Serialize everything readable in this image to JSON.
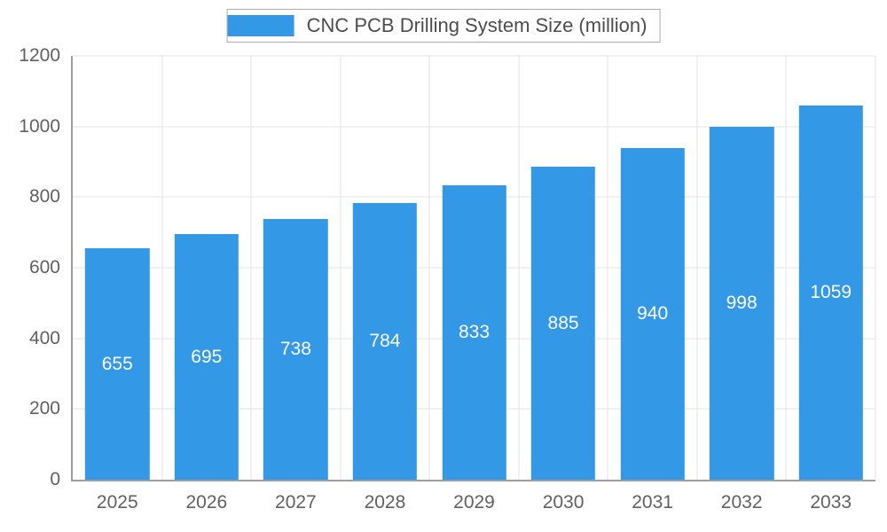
{
  "chart_data": {
    "type": "bar",
    "title": "CNC PCB Drilling System Size (million)",
    "categories": [
      "2025",
      "2026",
      "2027",
      "2028",
      "2029",
      "2030",
      "2031",
      "2032",
      "2033"
    ],
    "values": [
      655,
      695,
      738,
      784,
      833,
      885,
      940,
      998,
      1059
    ],
    "xlabel": "",
    "ylabel": "",
    "ylim": [
      0,
      1200
    ],
    "yticks": [
      0,
      200,
      400,
      600,
      800,
      1000,
      1200
    ],
    "grid": true,
    "legend_position": "top-center",
    "value_labels": "centered-inside-bars"
  },
  "legend": {
    "label": "CNC PCB Drilling System Size (million)"
  },
  "colors": {
    "bar": "#3398e6",
    "value_label": "#ffffff",
    "grid": "#e3e3e3",
    "axis": "#9e9e9e",
    "tick_text": "#616161",
    "legend_text": "#4d4d4d",
    "background": "#ffffff"
  }
}
